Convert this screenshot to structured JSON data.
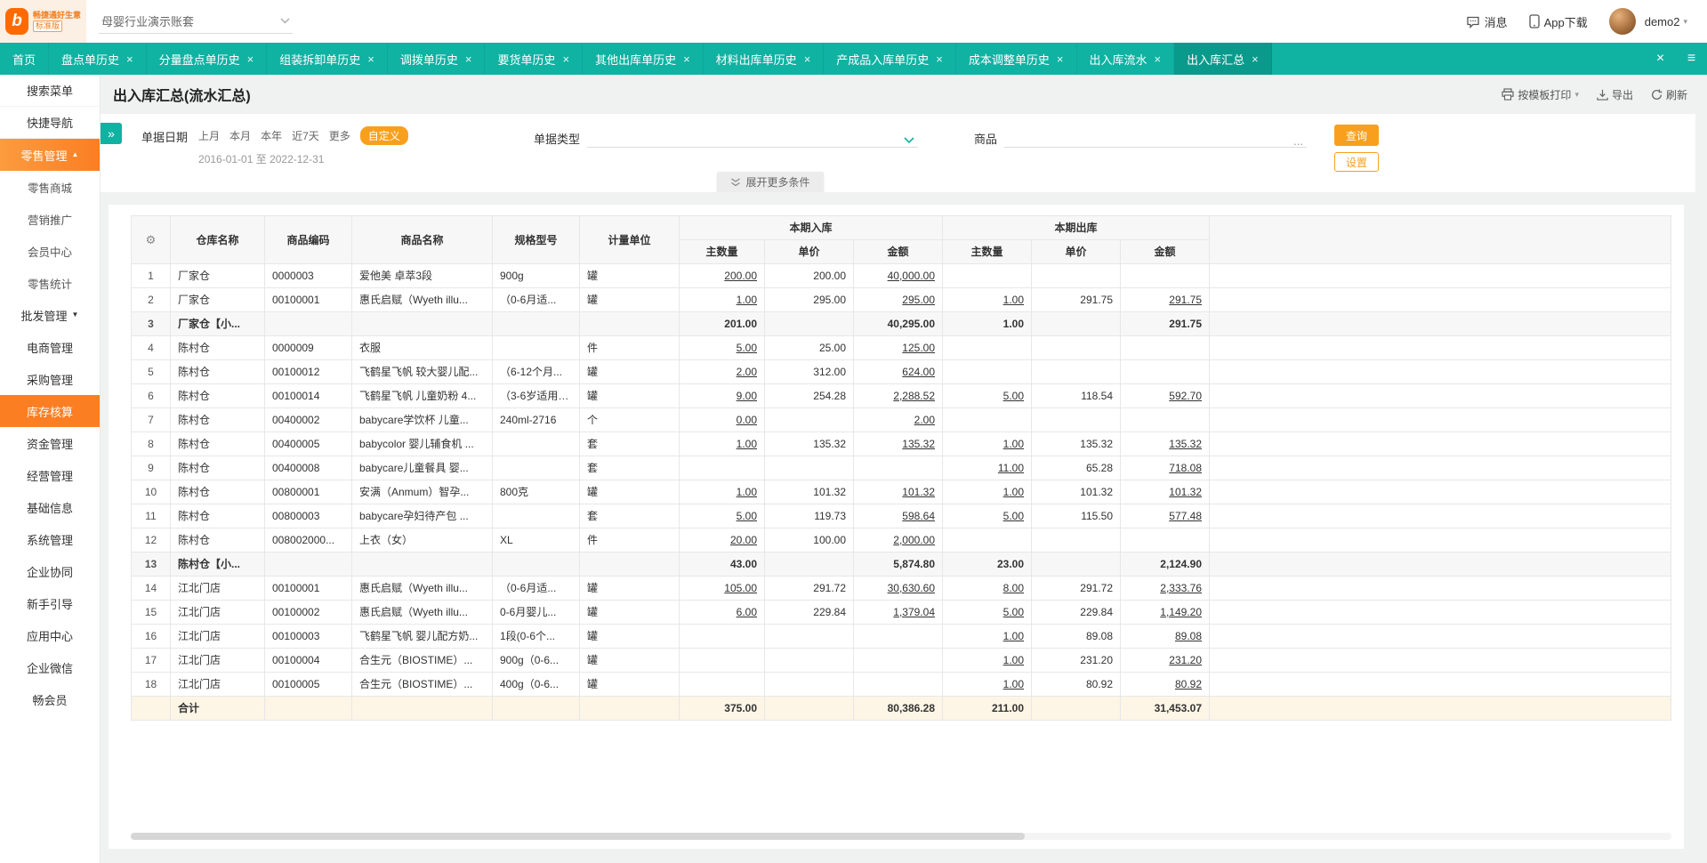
{
  "theme": {
    "teal": "#10b2a2",
    "teal-dark": "#0a9a8b",
    "orange": "#fb7e23",
    "orange-btn": "#f8a01e",
    "total-bg": "#fdf5e6"
  },
  "topbar": {
    "brand": "畅捷通好生意",
    "edition": "标准版",
    "account": "母婴行业演示账套",
    "messages": "消息",
    "app_download": "App下载",
    "username": "demo2"
  },
  "tabs": {
    "items": [
      {
        "label": "首页",
        "closable": false,
        "active": false
      },
      {
        "label": "盘点单历史",
        "closable": true,
        "active": false
      },
      {
        "label": "分量盘点单历史",
        "closable": true,
        "active": false
      },
      {
        "label": "组装拆卸单历史",
        "closable": true,
        "active": false
      },
      {
        "label": "调拨单历史",
        "closable": true,
        "active": false
      },
      {
        "label": "要货单历史",
        "closable": true,
        "active": false
      },
      {
        "label": "其他出库单历史",
        "closable": true,
        "active": false
      },
      {
        "label": "材料出库单历史",
        "closable": true,
        "active": false
      },
      {
        "label": "产成品入库单历史",
        "closable": true,
        "active": false
      },
      {
        "label": "成本调整单历史",
        "closable": true,
        "active": false
      },
      {
        "label": "出入库流水",
        "closable": true,
        "active": false
      },
      {
        "label": "出入库汇总",
        "closable": true,
        "active": true
      }
    ]
  },
  "sidebar": {
    "items": [
      {
        "label": "搜索菜单",
        "type": "plain",
        "divider": true
      },
      {
        "label": "快捷导航",
        "type": "plain",
        "divider": true
      },
      {
        "label": "零售管理",
        "type": "group-open",
        "arrow": "up"
      },
      {
        "label": "零售商城",
        "type": "sub"
      },
      {
        "label": "营销推广",
        "type": "sub"
      },
      {
        "label": "会员中心",
        "type": "sub"
      },
      {
        "label": "零售统计",
        "type": "sub"
      },
      {
        "label": "批发管理",
        "type": "group-closed",
        "arrow": "down"
      },
      {
        "label": "电商管理",
        "type": "plain"
      },
      {
        "label": "采购管理",
        "type": "plain"
      },
      {
        "label": "库存核算",
        "type": "active"
      },
      {
        "label": "资金管理",
        "type": "plain"
      },
      {
        "label": "经营管理",
        "type": "plain"
      },
      {
        "label": "基础信息",
        "type": "plain"
      },
      {
        "label": "系统管理",
        "type": "plain"
      },
      {
        "label": "企业协同",
        "type": "plain"
      },
      {
        "label": "新手引导",
        "type": "plain"
      },
      {
        "label": "应用中心",
        "type": "plain"
      },
      {
        "label": "企业微信",
        "type": "plain"
      },
      {
        "label": "畅会员",
        "type": "plain"
      }
    ]
  },
  "page": {
    "title": "出入库汇总(流水汇总)",
    "print_label": "按模板打印",
    "export_label": "导出",
    "refresh_label": "刷新"
  },
  "filters": {
    "date_label": "单据日期",
    "date_quick": [
      "上月",
      "本月",
      "本年",
      "近7天",
      "更多"
    ],
    "custom_label": "自定义",
    "date_range": "2016-01-01 至 2022-12-31",
    "doc_type_label": "单据类型",
    "product_label": "商品",
    "query_button": "查询",
    "settings_button": "设置",
    "expand_more": "展开更多条件"
  },
  "table": {
    "headers": {
      "warehouse": "仓库名称",
      "code": "商品编码",
      "name": "商品名称",
      "spec": "规格型号",
      "unit": "计量单位",
      "in_group": "本期入库",
      "out_group": "本期出库",
      "qty": "主数量",
      "price": "单价",
      "amount": "金额"
    },
    "rows": [
      {
        "n": "1",
        "type": "data",
        "warehouse": "厂家仓",
        "code": "0000003",
        "name": "爱他美 卓萃3段",
        "spec": "900g",
        "unit": "罐",
        "in_qty": "200.00",
        "in_price": "200.00",
        "in_amt": "40,000.00",
        "out_qty": "",
        "out_price": "",
        "out_amt": ""
      },
      {
        "n": "2",
        "type": "data",
        "warehouse": "厂家仓",
        "code": "00100001",
        "name": "惠氏启赋（Wyeth illu...",
        "spec": "（0-6月适...",
        "unit": "罐",
        "in_qty": "1.00",
        "in_price": "295.00",
        "in_amt": "295.00",
        "out_qty": "1.00",
        "out_price": "291.75",
        "out_amt": "291.75"
      },
      {
        "n": "3",
        "type": "subtotal",
        "warehouse": "厂家仓【小...",
        "in_qty": "201.00",
        "in_amt": "40,295.00",
        "out_qty": "1.00",
        "out_amt": "291.75"
      },
      {
        "n": "4",
        "type": "data",
        "warehouse": "陈村仓",
        "code": "0000009",
        "name": "衣服",
        "spec": "",
        "unit": "件",
        "in_qty": "5.00",
        "in_price": "25.00",
        "in_amt": "125.00"
      },
      {
        "n": "5",
        "type": "data",
        "warehouse": "陈村仓",
        "code": "00100012",
        "name": "飞鹤星飞帆 较大婴儿配...",
        "spec": "（6-12个月...",
        "unit": "罐",
        "in_qty": "2.00",
        "in_price": "312.00",
        "in_amt": "624.00"
      },
      {
        "n": "6",
        "type": "data",
        "warehouse": "陈村仓",
        "code": "00100014",
        "name": "飞鹤星飞帆 儿童奶粉 4...",
        "spec": "（3-6岁适用）...",
        "unit": "罐",
        "in_qty": "9.00",
        "in_price": "254.28",
        "in_amt": "2,288.52",
        "out_qty": "5.00",
        "out_price": "118.54",
        "out_amt": "592.70"
      },
      {
        "n": "7",
        "type": "data",
        "warehouse": "陈村仓",
        "code": "00400002",
        "name": "babycare学饮杯 儿童...",
        "spec": "240ml-2716",
        "unit": "个",
        "in_qty": "0.00",
        "in_amt": "2.00"
      },
      {
        "n": "8",
        "type": "data",
        "warehouse": "陈村仓",
        "code": "00400005",
        "name": "babycolor 婴儿辅食机 ...",
        "spec": "",
        "unit": "套",
        "in_qty": "1.00",
        "in_price": "135.32",
        "in_amt": "135.32",
        "out_qty": "1.00",
        "out_price": "135.32",
        "out_amt": "135.32"
      },
      {
        "n": "9",
        "type": "data",
        "warehouse": "陈村仓",
        "code": "00400008",
        "name": "babycare儿童餐具 婴...",
        "spec": "",
        "unit": "套",
        "out_qty": "11.00",
        "out_price": "65.28",
        "out_amt": "718.08"
      },
      {
        "n": "10",
        "type": "data",
        "warehouse": "陈村仓",
        "code": "00800001",
        "name": "安满（Anmum）智孕...",
        "spec": "800克",
        "unit": "罐",
        "in_qty": "1.00",
        "in_price": "101.32",
        "in_amt": "101.32",
        "out_qty": "1.00",
        "out_price": "101.32",
        "out_amt": "101.32"
      },
      {
        "n": "11",
        "type": "data",
        "warehouse": "陈村仓",
        "code": "00800003",
        "name": "babycare孕妇待产包 ...",
        "spec": "",
        "unit": "套",
        "in_qty": "5.00",
        "in_price": "119.73",
        "in_amt": "598.64",
        "out_qty": "5.00",
        "out_price": "115.50",
        "out_amt": "577.48"
      },
      {
        "n": "12",
        "type": "data",
        "warehouse": "陈村仓",
        "code": "008002000...",
        "name": "上衣（女）",
        "spec": "XL",
        "unit": "件",
        "in_qty": "20.00",
        "in_price": "100.00",
        "in_amt": "2,000.00"
      },
      {
        "n": "13",
        "type": "subtotal",
        "warehouse": "陈村仓【小...",
        "in_qty": "43.00",
        "in_amt": "5,874.80",
        "out_qty": "23.00",
        "out_amt": "2,124.90"
      },
      {
        "n": "14",
        "type": "data",
        "warehouse": "江北门店",
        "code": "00100001",
        "name": "惠氏启赋（Wyeth illu...",
        "spec": "（0-6月适...",
        "unit": "罐",
        "in_qty": "105.00",
        "in_price": "291.72",
        "in_amt": "30,630.60",
        "out_qty": "8.00",
        "out_price": "291.72",
        "out_amt": "2,333.76"
      },
      {
        "n": "15",
        "type": "data",
        "warehouse": "江北门店",
        "code": "00100002",
        "name": "惠氏启赋（Wyeth illu...",
        "spec": "0-6月婴儿...",
        "unit": "罐",
        "in_qty": "6.00",
        "in_price": "229.84",
        "in_amt": "1,379.04",
        "out_qty": "5.00",
        "out_price": "229.84",
        "out_amt": "1,149.20"
      },
      {
        "n": "16",
        "type": "data",
        "warehouse": "江北门店",
        "code": "00100003",
        "name": "飞鹤星飞帆 婴儿配方奶...",
        "spec": "1段(0-6个...",
        "unit": "罐",
        "out_qty": "1.00",
        "out_price": "89.08",
        "out_amt": "89.08"
      },
      {
        "n": "17",
        "type": "data",
        "warehouse": "江北门店",
        "code": "00100004",
        "name": "合生元（BIOSTIME）...",
        "spec": "900g（0-6...",
        "unit": "罐",
        "out_qty": "1.00",
        "out_price": "231.20",
        "out_amt": "231.20"
      },
      {
        "n": "18",
        "type": "data",
        "warehouse": "江北门店",
        "code": "00100005",
        "name": "合生元（BIOSTIME）...",
        "spec": "400g（0-6...",
        "unit": "罐",
        "out_qty": "1.00",
        "out_price": "80.92",
        "out_amt": "80.92"
      }
    ],
    "total_label": "合计",
    "total": {
      "in_qty": "375.00",
      "in_amount": "80,386.28",
      "out_qty": "211.00",
      "out_amount": "31,453.07"
    }
  }
}
